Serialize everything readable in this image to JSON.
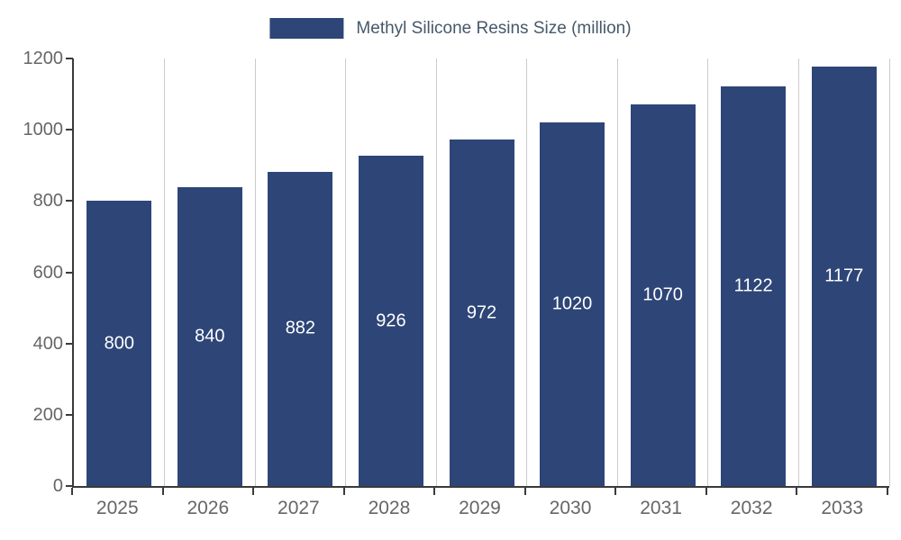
{
  "chart_data": {
    "type": "bar",
    "title": "",
    "legend": "Methyl Silicone Resins Size (million)",
    "categories": [
      "2025",
      "2026",
      "2027",
      "2028",
      "2029",
      "2030",
      "2031",
      "2032",
      "2033"
    ],
    "values": [
      800,
      840,
      882,
      926,
      972,
      1020,
      1070,
      1122,
      1177
    ],
    "xlabel": "",
    "ylabel": "",
    "ylim": [
      0,
      1200
    ],
    "yticks": [
      0,
      200,
      400,
      600,
      800,
      1000,
      1200
    ],
    "grid": "vertical",
    "legend_position": "top-center",
    "colors": {
      "bar": "#2e4577",
      "bar_value_label": "#ffffff",
      "axis_line": "#3a3a3a",
      "axis_tick_label": "#666666",
      "gridline": "#cccccc",
      "legend_text": "#46586a",
      "background": "#ffffff"
    }
  }
}
